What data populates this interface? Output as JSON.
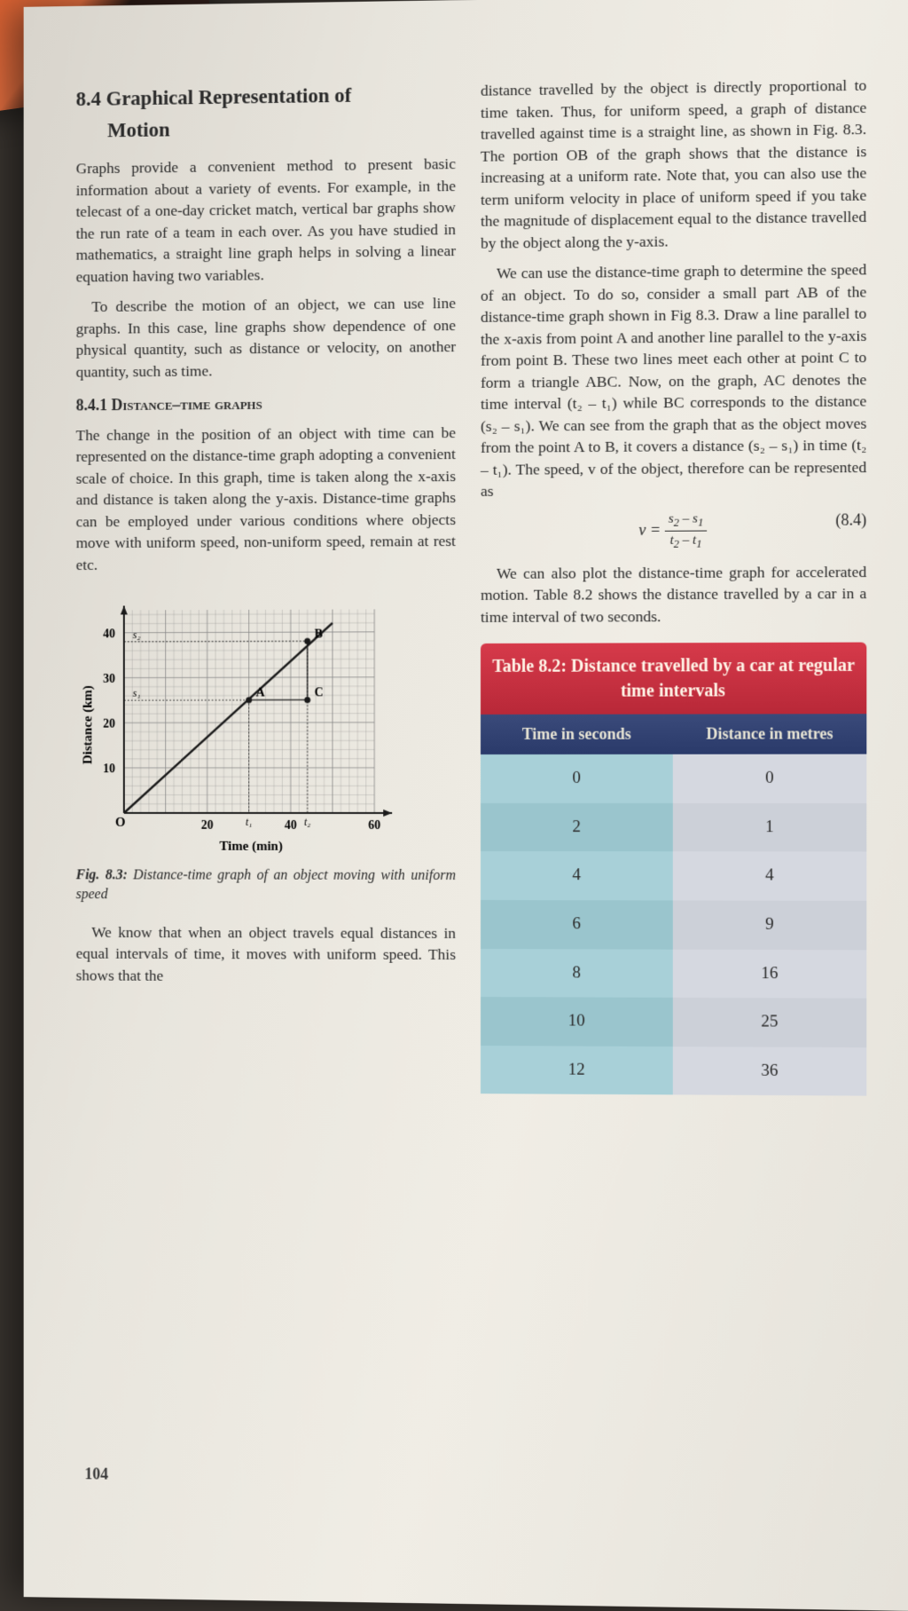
{
  "section": {
    "number": "8.4",
    "title": "Graphical Representation of",
    "title2": "Motion"
  },
  "col1": {
    "p1": "Graphs provide a convenient method to present basic information about a variety of events. For example, in the telecast of a one-day cricket match, vertical bar graphs show the run rate of a team in each over. As you have studied in mathematics, a straight line graph helps in solving a linear equation having two variables.",
    "p2": "To describe the motion of an object, we can use line graphs. In this case, line graphs show dependence of one physical quantity, such as distance or velocity, on another quantity, such as time.",
    "sub1_num": "8.4.1",
    "sub1_title": "Distance–time graphs",
    "p3": "The change in the position of an object with time can be represented on the distance-time graph adopting a convenient scale of choice. In this graph, time is taken along the x-axis and distance is taken along the y-axis. Distance-time graphs can be employed under various conditions where objects move with uniform speed, non-uniform speed, remain at rest etc.",
    "caption_label": "Fig. 8.3:",
    "caption_text": "Distance-time graph of an object moving with uniform speed",
    "p4": "We know that when an object travels equal distances in equal intervals of time, it moves with uniform speed. This shows that the"
  },
  "col2": {
    "p1": "distance travelled by the object is directly proportional to time taken. Thus, for uniform speed, a graph of distance travelled against time is a straight line, as shown in Fig. 8.3. The portion OB of the graph shows that the distance is increasing at a uniform rate. Note that, you can also use the term uniform velocity in place of uniform speed if you take the magnitude of displacement equal to the distance travelled by the object along the y-axis.",
    "p2": "We can use the distance-time graph to determine the speed of an object. To do so, consider a small part AB of the distance-time graph shown in Fig 8.3. Draw a line parallel to the x-axis from point A and another line parallel to the y-axis from point B. These two lines meet each other at point C to form a triangle ABC. Now, on the graph, AC denotes the time interval (t₂ – t₁) while BC corresponds to the distance (s₂ – s₁). We can see from the graph that as the object moves from the point A to B, it covers a distance (s₂ – s₁) in time (t₂ – t₁). The speed, v of the object, therefore can be represented as",
    "eq_num": "(8.4)",
    "p3": "We can also plot the distance-time graph for accelerated motion. Table 8.2 shows the distance travelled by a car in a time interval of two seconds."
  },
  "chart": {
    "ylabel": "Distance (km)",
    "xlabel": "Time (min)",
    "yticks": [
      10,
      20,
      30,
      40
    ],
    "xticks": [
      20,
      40,
      60
    ],
    "points": {
      "A": {
        "label": "A",
        "x": 30,
        "y": 25
      },
      "B": {
        "label": "B",
        "x": 44,
        "y": 38
      },
      "C": {
        "label": "C",
        "x": 44,
        "y": 25
      }
    },
    "line_start": {
      "x": 0,
      "y": 0
    },
    "line_end": {
      "x": 50,
      "y": 42
    },
    "t1_label": "t₁",
    "t2_label": "t₂",
    "s1_label": "s₁",
    "s2_label": "s₂",
    "origin_label": "O",
    "grid_color": "#888888",
    "line_color": "#1a1a1a",
    "bg_color": "#e5e2da"
  },
  "table": {
    "title": "Table 8.2: Distance travelled by a car at regular time intervals",
    "col1": "Time in seconds",
    "col2": "Distance in metres",
    "rows": [
      [
        "0",
        "0"
      ],
      [
        "2",
        "1"
      ],
      [
        "4",
        "4"
      ],
      [
        "6",
        "9"
      ],
      [
        "8",
        "16"
      ],
      [
        "10",
        "25"
      ],
      [
        "12",
        "36"
      ]
    ]
  },
  "pagenum": "104"
}
